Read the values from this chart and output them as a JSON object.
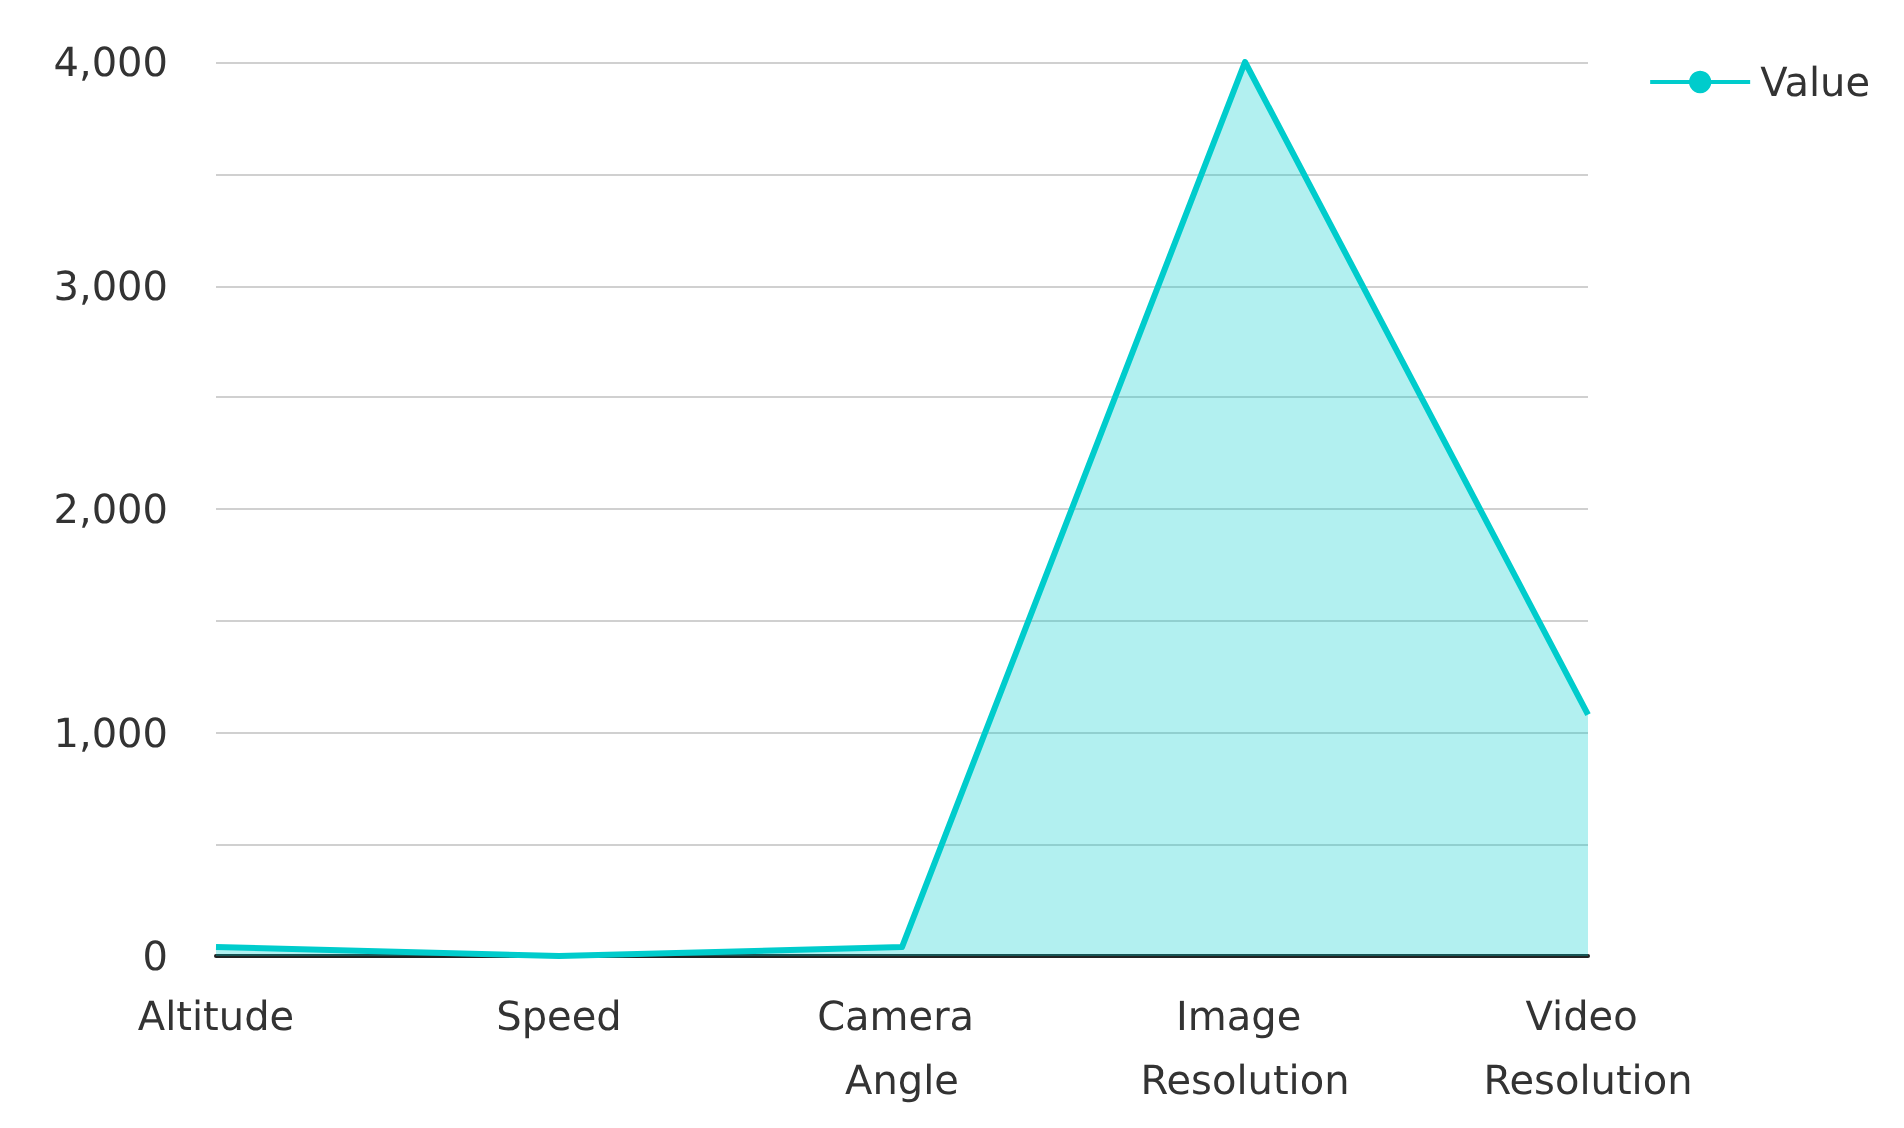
{
  "chart_data": {
    "type": "area",
    "categories": [
      "Altitude",
      "Speed",
      "Camera Angle",
      "Image Resolution",
      "Video Resolution"
    ],
    "series": [
      {
        "name": "Value",
        "color": "#00cccc",
        "values": [
          40,
          0,
          40,
          4000,
          1080
        ]
      }
    ],
    "ylim": [
      0,
      4000
    ],
    "yticks": [
      0,
      {
        "value": 500,
        "label": null
      },
      {
        "value": 1000,
        "label": "1,000"
      },
      {
        "value": 1500,
        "label": null
      },
      {
        "value": 2000,
        "label": "2,000"
      },
      {
        "value": 2500,
        "label": null
      },
      {
        "value": 3000,
        "label": "3,000"
      },
      {
        "value": 3500,
        "label": null
      },
      {
        "value": 4000,
        "label": "4,000"
      }
    ],
    "grid": "y",
    "legend": "top right",
    "marker": "none"
  }
}
